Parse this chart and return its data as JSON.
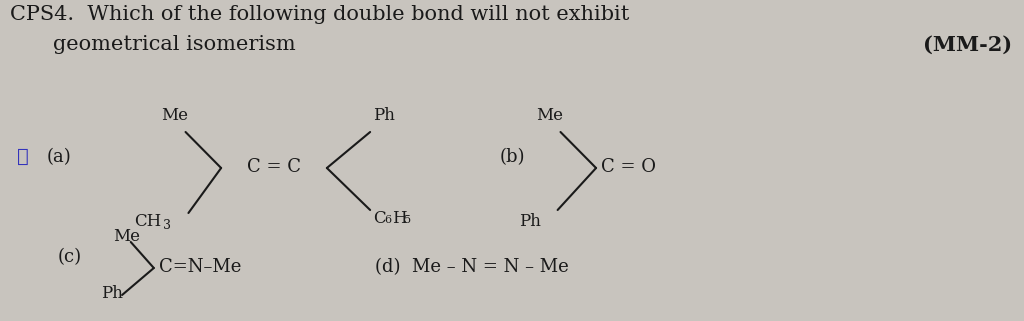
{
  "bg_color": "#c8c4be",
  "text_color": "#1a1a1a",
  "title_line1": "CPS4.  Which of the following double bond will not exhibit",
  "title_line2": "geometrical isomerism",
  "mark": "(MM-2)",
  "check_color": "#3333bb",
  "option_d_text": "Me – N = N – Me"
}
